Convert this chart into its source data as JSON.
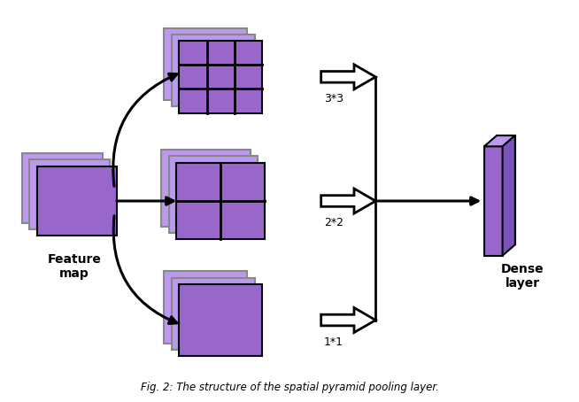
{
  "bg_color": "#ffffff",
  "purple_fill": "#9966cc",
  "purple_dark": "#5544aa",
  "purple_light": "#bb99ee",
  "purple_side": "#7755bb",
  "grid_color": "#000000",
  "arrow_fill": "#ffffff",
  "arrow_edge": "#000000",
  "caption": "Fig. 2: The structure of the spatial pyramid pooling layer.",
  "label_feature": "Feature\nmap",
  "label_dense": "Dense\nlayer",
  "label_3x3": "3*3",
  "label_2x2": "2*2",
  "label_1x1": "1*1",
  "figsize": [
    6.54,
    4.54
  ],
  "dpi": 100
}
